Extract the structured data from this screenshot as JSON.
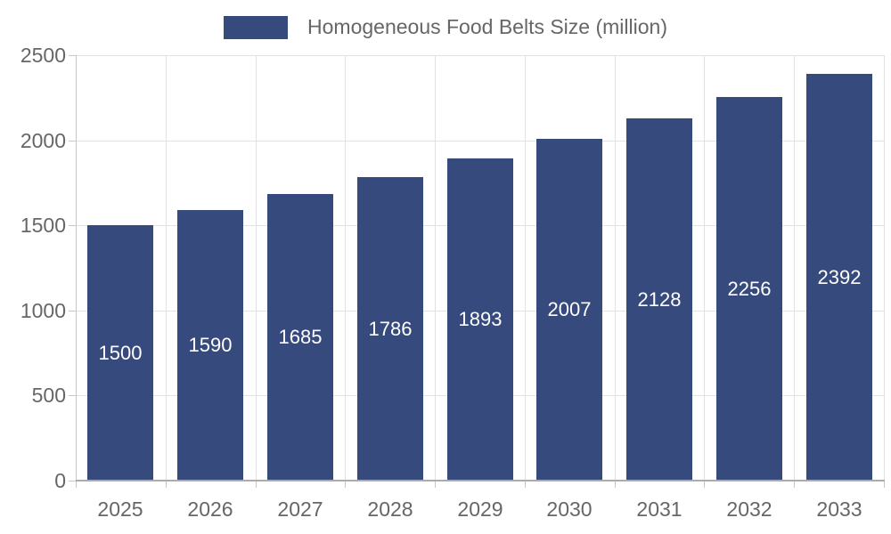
{
  "chart_data": {
    "type": "bar",
    "title": "Homogeneous Food Belts Size (million)",
    "legend_entries": [
      "Homogeneous Food Belts Size (million)"
    ],
    "legend_position": "top",
    "categories": [
      "2025",
      "2026",
      "2027",
      "2028",
      "2029",
      "2030",
      "2031",
      "2032",
      "2033"
    ],
    "values": [
      1500,
      1590,
      1685,
      1786,
      1893,
      2007,
      2128,
      2256,
      2392
    ],
    "value_labels": [
      "1500",
      "1590",
      "1685",
      "1786",
      "1893",
      "2007",
      "2128",
      "2256",
      "2392"
    ],
    "xlabel": "",
    "ylabel": "",
    "ylim": [
      0,
      2500
    ],
    "yticks": [
      0,
      500,
      1000,
      1500,
      2000,
      2500
    ],
    "ytick_labels": [
      "0",
      "500",
      "1000",
      "1500",
      "2000",
      "2500"
    ],
    "grid": true
  },
  "colors": {
    "bar": "#374a7e",
    "grid": "#e2e2e2",
    "axis": "#ababab",
    "axis_light": "#c6c6c6",
    "tick_text": "#666666",
    "legend_text": "#666666",
    "bar_label": "#ffffff",
    "background": "#ffffff"
  }
}
